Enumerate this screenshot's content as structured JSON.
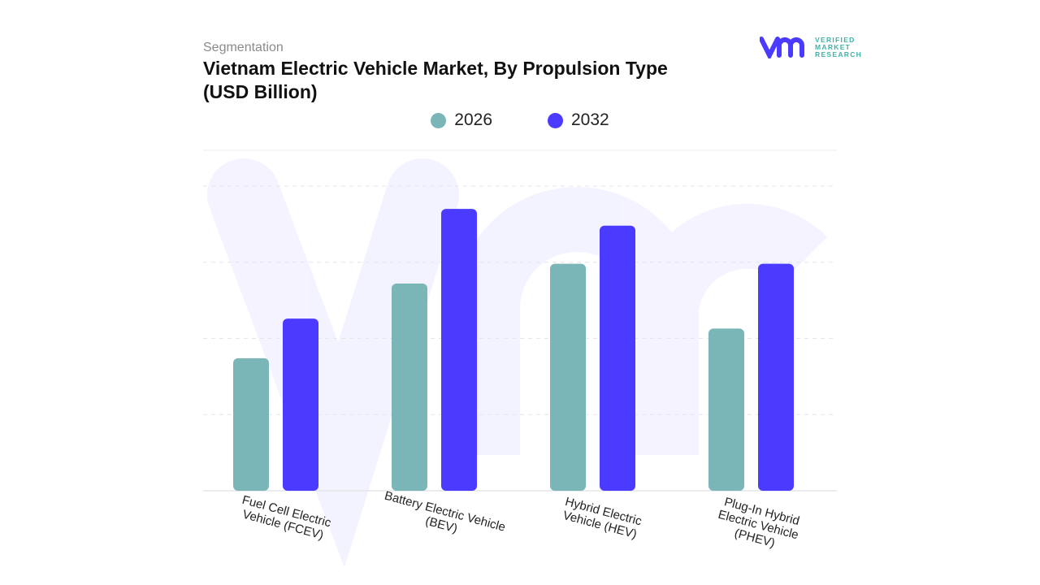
{
  "header": {
    "segment_label": "Segmentation",
    "title": "Vietnam Electric Vehicle Market, By Propulsion Type (USD Billion)"
  },
  "logo": {
    "text_lines": [
      "VERIFIED",
      "MARKET",
      "RESEARCH"
    ],
    "icon": "vmr-logo-icon"
  },
  "colors": {
    "2026": "#7ab5b7",
    "2032": "#4b3aff"
  },
  "chart_data": {
    "type": "bar",
    "title": "Vietnam Electric Vehicle Market, By Propulsion Type (USD Billion)",
    "xlabel": "",
    "ylabel": "",
    "categories": [
      [
        "Fuel Cell Electric",
        "Vehicle (FCEV)"
      ],
      [
        "Battery Electric Vehicle",
        "(BEV)"
      ],
      [
        "Hybrid Electric",
        "Vehicle (HEV)"
      ],
      [
        "Plug-In Hybrid",
        "Electric Vehicle",
        "(PHEV)"
      ]
    ],
    "series": [
      {
        "name": "2026",
        "color": "#7ab5b7",
        "values": [
          1.74,
          2.72,
          2.98,
          2.13
        ]
      },
      {
        "name": "2032",
        "color": "#4b3aff",
        "values": [
          2.26,
          3.7,
          3.48,
          2.98
        ]
      }
    ],
    "ylim": [
      0,
      4.47
    ],
    "grid": true,
    "y_tick_labels_shown": false,
    "legend_position": "top-center"
  }
}
